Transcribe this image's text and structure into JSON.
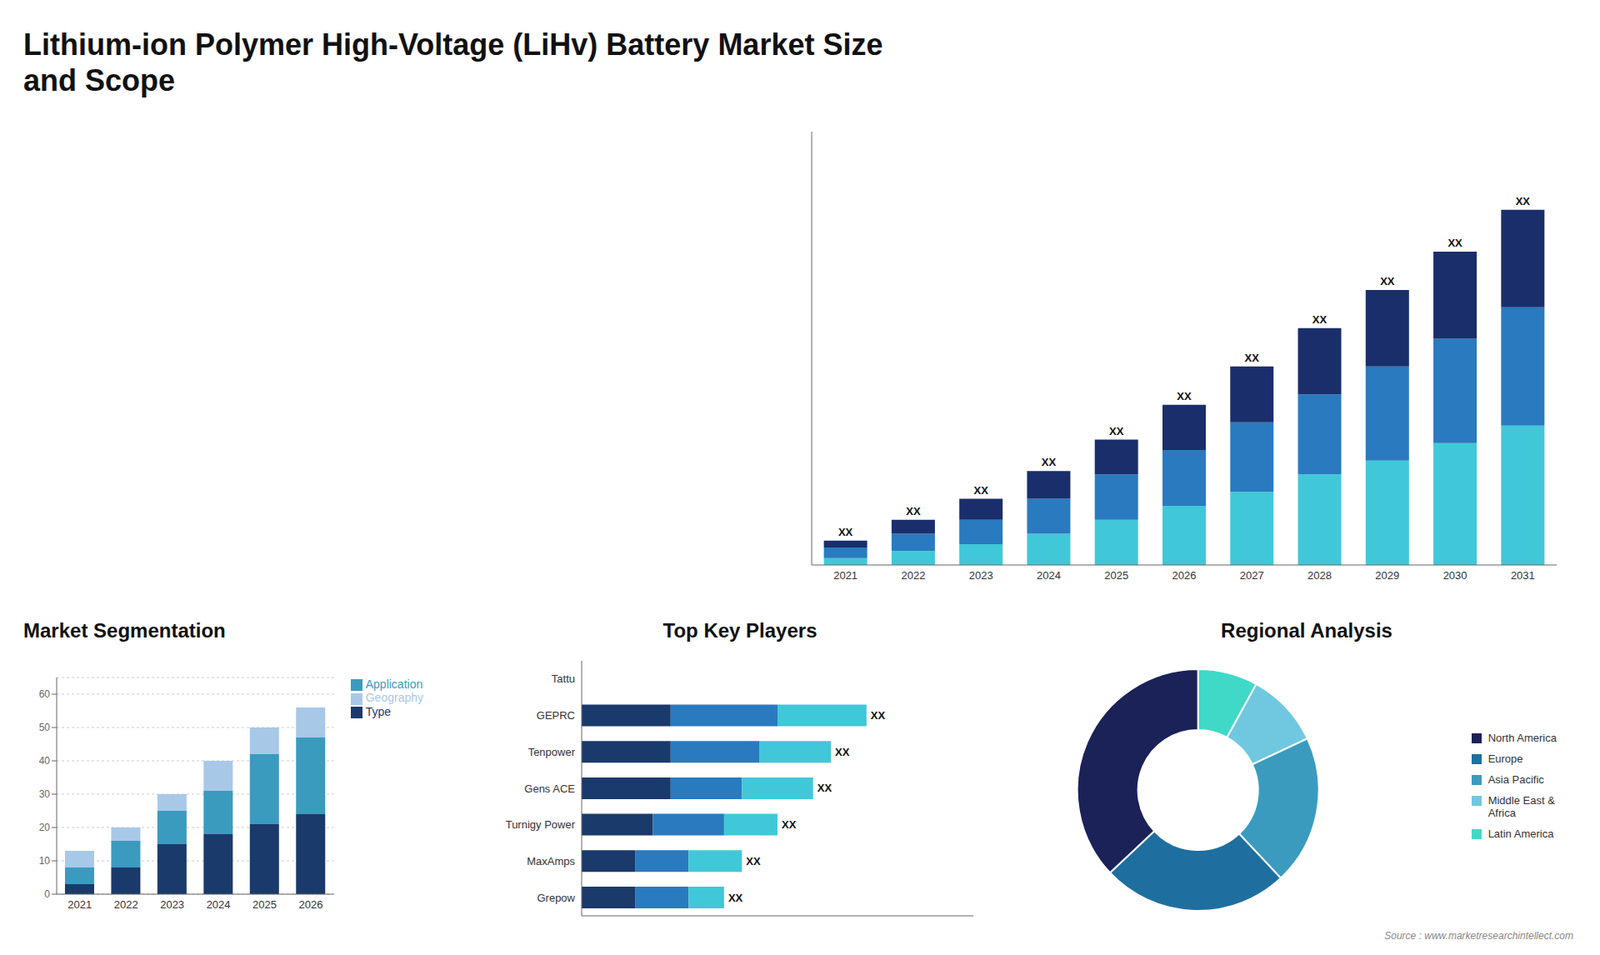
{
  "chart_data": [
    {
      "type": "bar",
      "title": "Lithium-ion Polymer High-Voltage (LiHv) Battery Market Size\nand Scope",
      "annotations": [
        "Source : www.marketresearchintellect.com"
      ],
      "categories": [
        "2021",
        "2022",
        "2023",
        "2024",
        "2025",
        "2026",
        "2027",
        "2028",
        "2029",
        "2030",
        "2031"
      ],
      "series": [
        {
          "color": "#40c8d8",
          "values": [
            2,
            4,
            6,
            9,
            13,
            17,
            21,
            26,
            30,
            35,
            40
          ]
        },
        {
          "color": "#2a7abf",
          "values": [
            3,
            5,
            7,
            10,
            13,
            16,
            20,
            23,
            27,
            30,
            34
          ]
        },
        {
          "color": "#1a2e6b",
          "values": [
            2,
            4,
            6,
            8,
            10,
            13,
            16,
            19,
            22,
            25,
            28
          ],
          "value_labels": [
            "XX",
            "XX",
            "XX",
            "XX",
            "XX",
            "XX",
            "XX",
            "XX",
            "XX",
            "XX",
            "XX"
          ]
        }
      ],
      "stacked": true,
      "data_labels": true,
      "ylim": [
        0,
        124.44
      ],
      "tick_labels": "x",
      "grid": false
    },
    {
      "type": "bar",
      "title": "Market Segmentation",
      "categories": [
        "2021",
        "2022",
        "2023",
        "2024",
        "2025",
        "2026"
      ],
      "series": [
        {
          "name": "Type",
          "color": "#1a3a6b",
          "values": [
            3,
            8,
            15,
            18,
            21,
            24
          ]
        },
        {
          "name": "Application",
          "color": "#3a9bbf",
          "values": [
            5,
            8,
            10,
            13,
            21,
            23
          ]
        },
        {
          "name": "Geography",
          "color": "#a8c8e8",
          "values": [
            5,
            4,
            5,
            9,
            8,
            9
          ]
        }
      ],
      "stacked": true,
      "ylim": [
        0,
        65
      ],
      "yticks": [
        0,
        10,
        20,
        30,
        40,
        50,
        60
      ],
      "grid": true,
      "legend": "right"
    },
    {
      "type": "bar",
      "title": "Top Key Players",
      "orientation": "horizontal",
      "categories": [
        "Tattu",
        "GEPRC",
        "Tenpower",
        "Gens ACE",
        "Turnigy Power",
        "MaxAmps",
        "Grepow"
      ],
      "series": [
        {
          "color": "#1a3a6b",
          "values": [
            0,
            5,
            5,
            5,
            4,
            3,
            3
          ]
        },
        {
          "color": "#2a7abf",
          "values": [
            0,
            6,
            5,
            4,
            4,
            3,
            3
          ]
        },
        {
          "color": "#40c8d8",
          "values": [
            0,
            5,
            4,
            4,
            3,
            3,
            2
          ],
          "value_labels": [
            null,
            "XX",
            "XX",
            "XX",
            "XX",
            "XX",
            "XX"
          ]
        }
      ],
      "stacked": true,
      "data_labels": true,
      "xlim": [
        0,
        22
      ],
      "tick_labels": "y",
      "grid": false
    },
    {
      "type": "pie",
      "title": "Regional Analysis",
      "categories": [
        "Latin America",
        "Middle East &\nAfrica",
        "Asia Pacific",
        "Europe",
        "North America"
      ],
      "values": [
        8,
        10,
        20,
        25,
        37
      ],
      "colors": [
        "#40d9c8",
        "#70c8e0",
        "#3a9bbf",
        "#1e6fa0",
        "#1a2258"
      ],
      "legend": "right"
    }
  ]
}
